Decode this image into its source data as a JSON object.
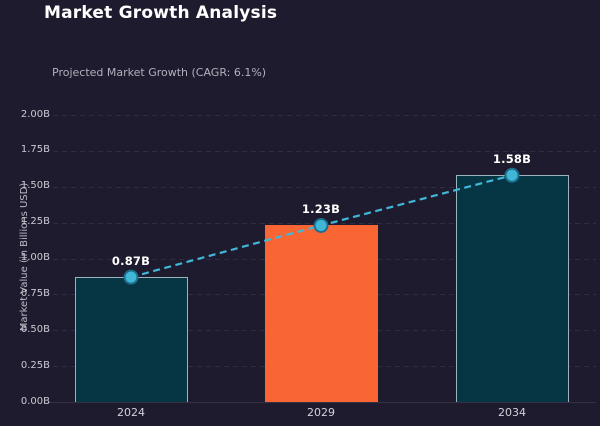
{
  "header": {
    "title": "Market Growth Analysis",
    "subtitle": "Projected Market Growth (CAGR: 6.1%)"
  },
  "chart_data": {
    "type": "bar",
    "title": "Market Growth Analysis",
    "subtitle": "Projected Market Growth (CAGR: 6.1%)",
    "categories": [
      "2024",
      "2029",
      "2034"
    ],
    "series": [
      {
        "name": "Market Value",
        "type": "bar",
        "values": [
          0.87,
          1.23,
          1.58
        ]
      },
      {
        "name": "Growth trend",
        "type": "line",
        "style": "dashed",
        "values": [
          0.87,
          1.23,
          1.58
        ]
      }
    ],
    "bar_value_labels": [
      "0.87B",
      "1.23B",
      "1.58B"
    ],
    "bar_colors": [
      "#063543",
      "#f96634",
      "#063543"
    ],
    "bar_border_colors": [
      "#9db3bb",
      "#f96634",
      "#9db3bb"
    ],
    "xlabel": "",
    "ylabel": "Market Value (in Billions USD)",
    "ylim": [
      0,
      2.0
    ],
    "ytick_values": [
      0,
      0.25,
      0.5,
      0.75,
      1.0,
      1.25,
      1.5,
      1.75,
      2.0
    ],
    "ytick_labels": [
      "0.00B",
      "0.25B",
      "0.50B",
      "0.75B",
      "1.00B",
      "1.25B",
      "1.50B",
      "1.75B",
      "2.00B"
    ],
    "grid": "horizontal-dashed",
    "legend": "none"
  },
  "colors": {
    "background": "#1d1b2d",
    "title_text": "#ffffff",
    "subtitle_text": "#b2b0bc",
    "tick_text": "#c9c8d2",
    "grid_line": "#2e2d45",
    "value_label_text": "#ffffff",
    "trend_line": "#41b7d8",
    "trend_marker_fill": "#41b7d8",
    "trend_marker_edge": "#1c6e8c"
  }
}
